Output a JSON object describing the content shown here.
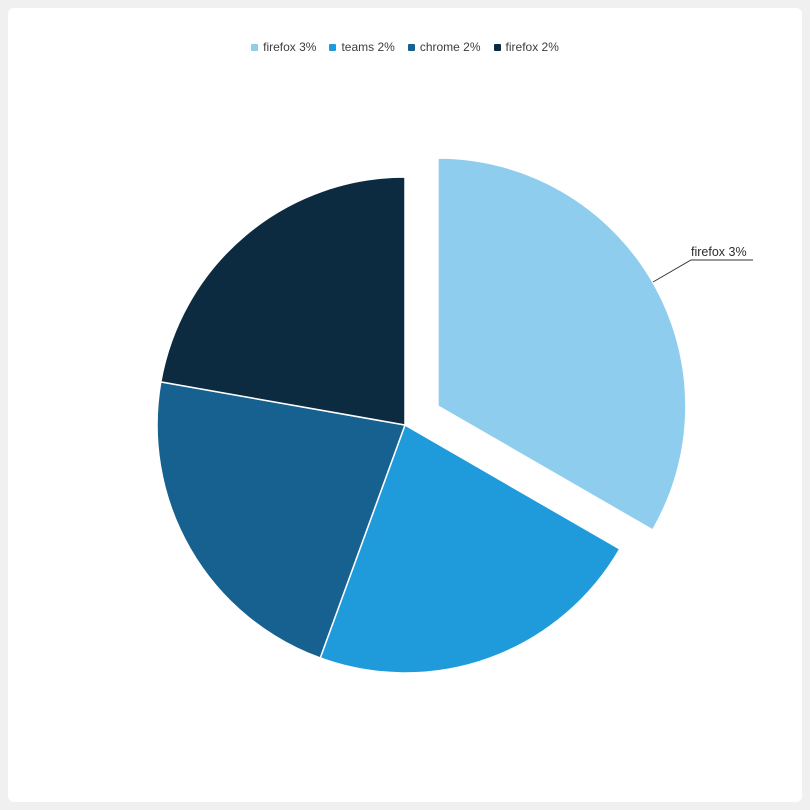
{
  "page": {
    "background_color": "#f0f0f0",
    "card_color": "#ffffff"
  },
  "chart_data": {
    "type": "pie",
    "title": "",
    "legend_position": "top",
    "unit": "%",
    "categories": [
      "firefox",
      "teams",
      "chrome",
      "firefox"
    ],
    "values": [
      3,
      2,
      2,
      2
    ],
    "slices": [
      {
        "label": "firefox 3%",
        "name": "firefox",
        "value": 3,
        "color": "#8FCDEE",
        "exploded": true
      },
      {
        "label": "teams 2%",
        "name": "teams",
        "value": 2,
        "color": "#1F9BDB",
        "exploded": false
      },
      {
        "label": "chrome 2%",
        "name": "chrome",
        "value": 2,
        "color": "#16618F",
        "exploded": false
      },
      {
        "label": "firefox 2%",
        "name": "firefox",
        "value": 2,
        "color": "#0C2B40",
        "exploded": false
      }
    ],
    "callout": {
      "text": "firefox 3%",
      "target": "firefox 3%"
    }
  }
}
